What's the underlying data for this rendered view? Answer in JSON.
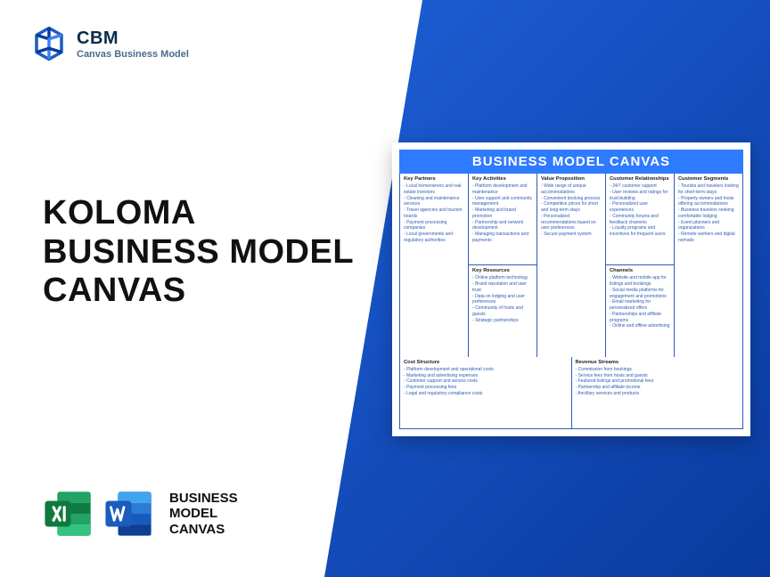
{
  "brand": {
    "name": "CBM",
    "subtitle": "Canvas Business Model"
  },
  "headline": {
    "line1": "KOLOMA",
    "line2": "BUSINESS MODEL",
    "line3": "CANVAS"
  },
  "footer": {
    "line1": "BUSINESS",
    "line2": "MODEL",
    "line3": "CANVAS"
  },
  "colors": {
    "gradient_start": "#1d5fd6",
    "gradient_end": "#0a3a9e",
    "canvas_header": "#2f7bff",
    "canvas_border": "#2f5bb7",
    "item_text": "#2f5bb7",
    "excel_dark": "#0f7a3e",
    "excel_light": "#21a366",
    "word_dark": "#1b5cbe",
    "word_light": "#2b7cd3"
  },
  "canvas": {
    "title": "BUSINESS MODEL CANVAS",
    "partners": {
      "title": "Key Partners",
      "items": [
        "Local homeowners and real estate investors",
        "Cleaning and maintenance services",
        "Travel agencies and tourism boards",
        "Payment processing companies",
        "Local governments and regulatory authorities"
      ]
    },
    "activities": {
      "title": "Key Activities",
      "items": [
        "Platform development and maintenance",
        "User support and community management",
        "Marketing and brand promotion",
        "Partnership and network development",
        "Managing transactions and payments"
      ]
    },
    "resources": {
      "title": "Key Resources",
      "items": [
        "Online platform technology",
        "Brand reputation and user trust",
        "Data on lodging and user preferences",
        "Community of hosts and guests",
        "Strategic partnerships"
      ]
    },
    "value": {
      "title": "Value Proposition",
      "items": [
        "Wide range of unique accommodations",
        "Convenient booking process",
        "Competitive prices for short and long-term stays",
        "Personalized recommendations based on user preferences",
        "Secure payment system"
      ]
    },
    "relationships": {
      "title": "Customer Relationships",
      "items": [
        "24/7 customer support",
        "User reviews and ratings for trust-building",
        "Personalized user experiences",
        "Community forums and feedback channels",
        "Loyalty programs and incentives for frequent users"
      ]
    },
    "channels": {
      "title": "Channels",
      "items": [
        "Website and mobile app for listings and bookings",
        "Social media platforms for engagement and promotions",
        "Email marketing for personalized offers",
        "Partnerships and affiliate programs",
        "Online and offline advertising"
      ]
    },
    "segments": {
      "title": "Customer Segments",
      "items": [
        "Tourists and travelers looking for short-term stays",
        "Property owners and hosts offering accommodations",
        "Business travelers seeking comfortable lodging",
        "Event planners and organizations",
        "Remote workers and digital nomads"
      ]
    },
    "costs": {
      "title": "Cost Structure",
      "items": [
        "Platform development and operational costs",
        "Marketing and advertising expenses",
        "Customer support and service costs",
        "Payment processing fees",
        "Legal and regulatory compliance costs"
      ]
    },
    "revenue": {
      "title": "Revenue Streams",
      "items": [
        "Commission from bookings",
        "Service fees from hosts and guests",
        "Featured listings and promotional fees",
        "Partnership and affiliate income",
        "Ancillary services and products"
      ]
    }
  }
}
